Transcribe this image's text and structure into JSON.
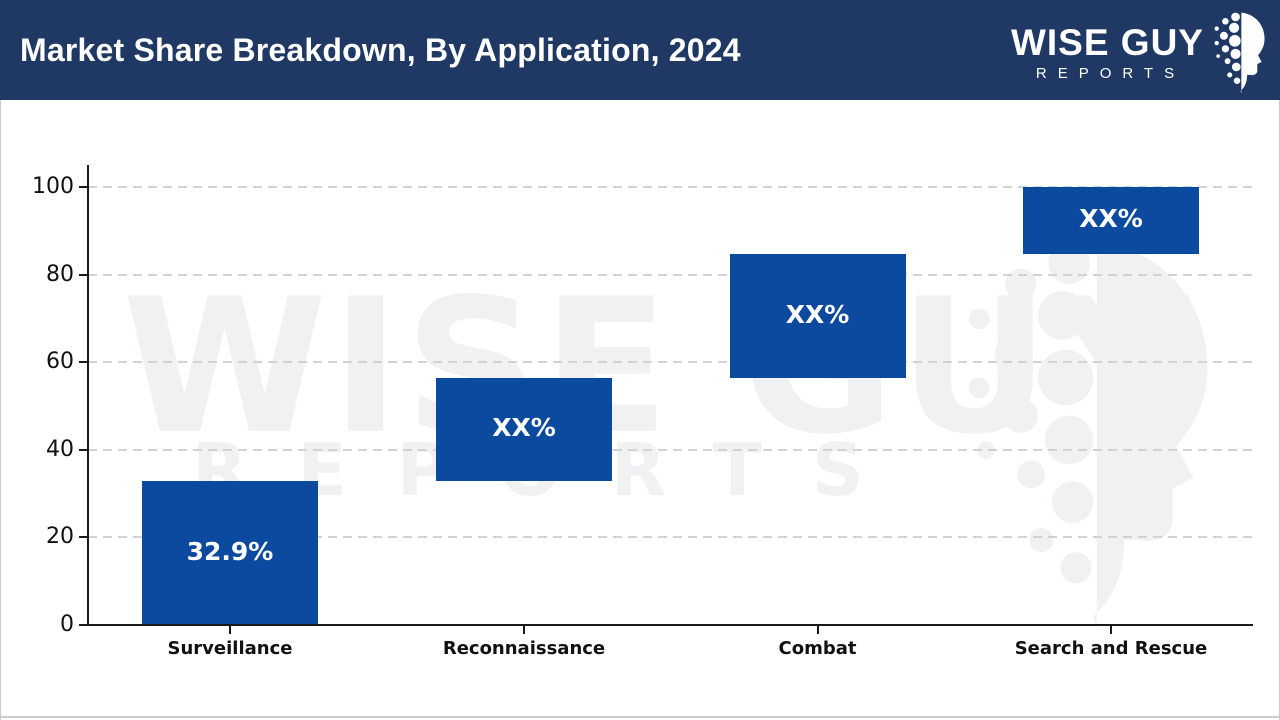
{
  "header": {
    "title": "Market Share Breakdown, By Application, 2024",
    "bg_color": "#1f3864",
    "brand": {
      "name": "WISE GUY",
      "sub": "REPORTS"
    }
  },
  "watermark": {
    "line1": "WISE GUY",
    "line2": "REPORTS"
  },
  "chart_data": {
    "type": "bar",
    "subtype": "floating-waterfall",
    "title": "Market Share Breakdown, By Application, 2024",
    "categories": [
      "Surveillance",
      "Reconnaissance",
      "Combat",
      "Search and Rescue"
    ],
    "segments": [
      {
        "category": "Surveillance",
        "start": 0,
        "end": 32.9,
        "label": "32.9%"
      },
      {
        "category": "Reconnaissance",
        "start": 32.9,
        "end": 56.4,
        "label": "XX%"
      },
      {
        "category": "Combat",
        "start": 56.4,
        "end": 84.8,
        "label": "XX%"
      },
      {
        "category": "Search and Rescue",
        "start": 84.8,
        "end": 100,
        "label": "XX%"
      }
    ],
    "yticks": [
      0,
      20,
      40,
      60,
      80,
      100
    ],
    "ylim": [
      0,
      105
    ],
    "xlabel": "",
    "ylabel": "",
    "bar_color": "#0b4a9f",
    "grid": "horizontal-dashed",
    "legend": false
  }
}
